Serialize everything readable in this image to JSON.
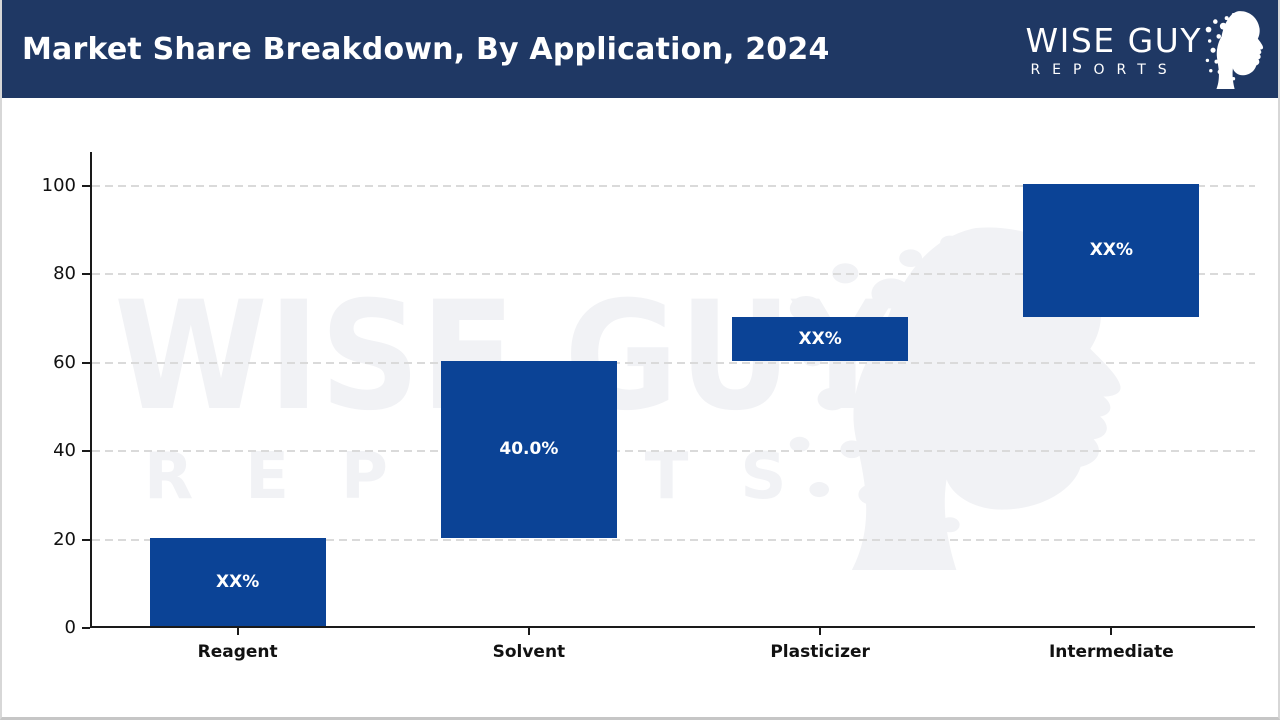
{
  "header": {
    "title": "Market Share Breakdown, By Application, 2024",
    "bg_color": "#1f3864",
    "logo": {
      "line1": "WISE GUY",
      "line2": "REPORTS"
    }
  },
  "watermark": {
    "line1": "WISE GUY",
    "line2": "REPORTS"
  },
  "chart_data": {
    "type": "bar",
    "subtype": "waterfall",
    "title": "Market Share Breakdown, By Application, 2024",
    "categories": [
      "Reagent",
      "Solvent",
      "Plasticizer",
      "Intermediate"
    ],
    "segments": [
      {
        "category": "Reagent",
        "start": 0,
        "end": 20,
        "label": "XX%"
      },
      {
        "category": "Solvent",
        "start": 20,
        "end": 60,
        "label": "40.0%"
      },
      {
        "category": "Plasticizer",
        "start": 60,
        "end": 70,
        "label": "XX%"
      },
      {
        "category": "Intermediate",
        "start": 70,
        "end": 100,
        "label": "XX%"
      }
    ],
    "ylim": [
      0,
      100
    ],
    "yticks": [
      0,
      20,
      40,
      60,
      80,
      100
    ],
    "xlabel": "",
    "ylabel": "",
    "grid": "horizontal-dashed",
    "legend_position": "none",
    "bar_color": "#0b4396",
    "bar_label_color": "#ffffff",
    "axis_color": "#1a1a1a",
    "gridline_color": "#dadada"
  }
}
